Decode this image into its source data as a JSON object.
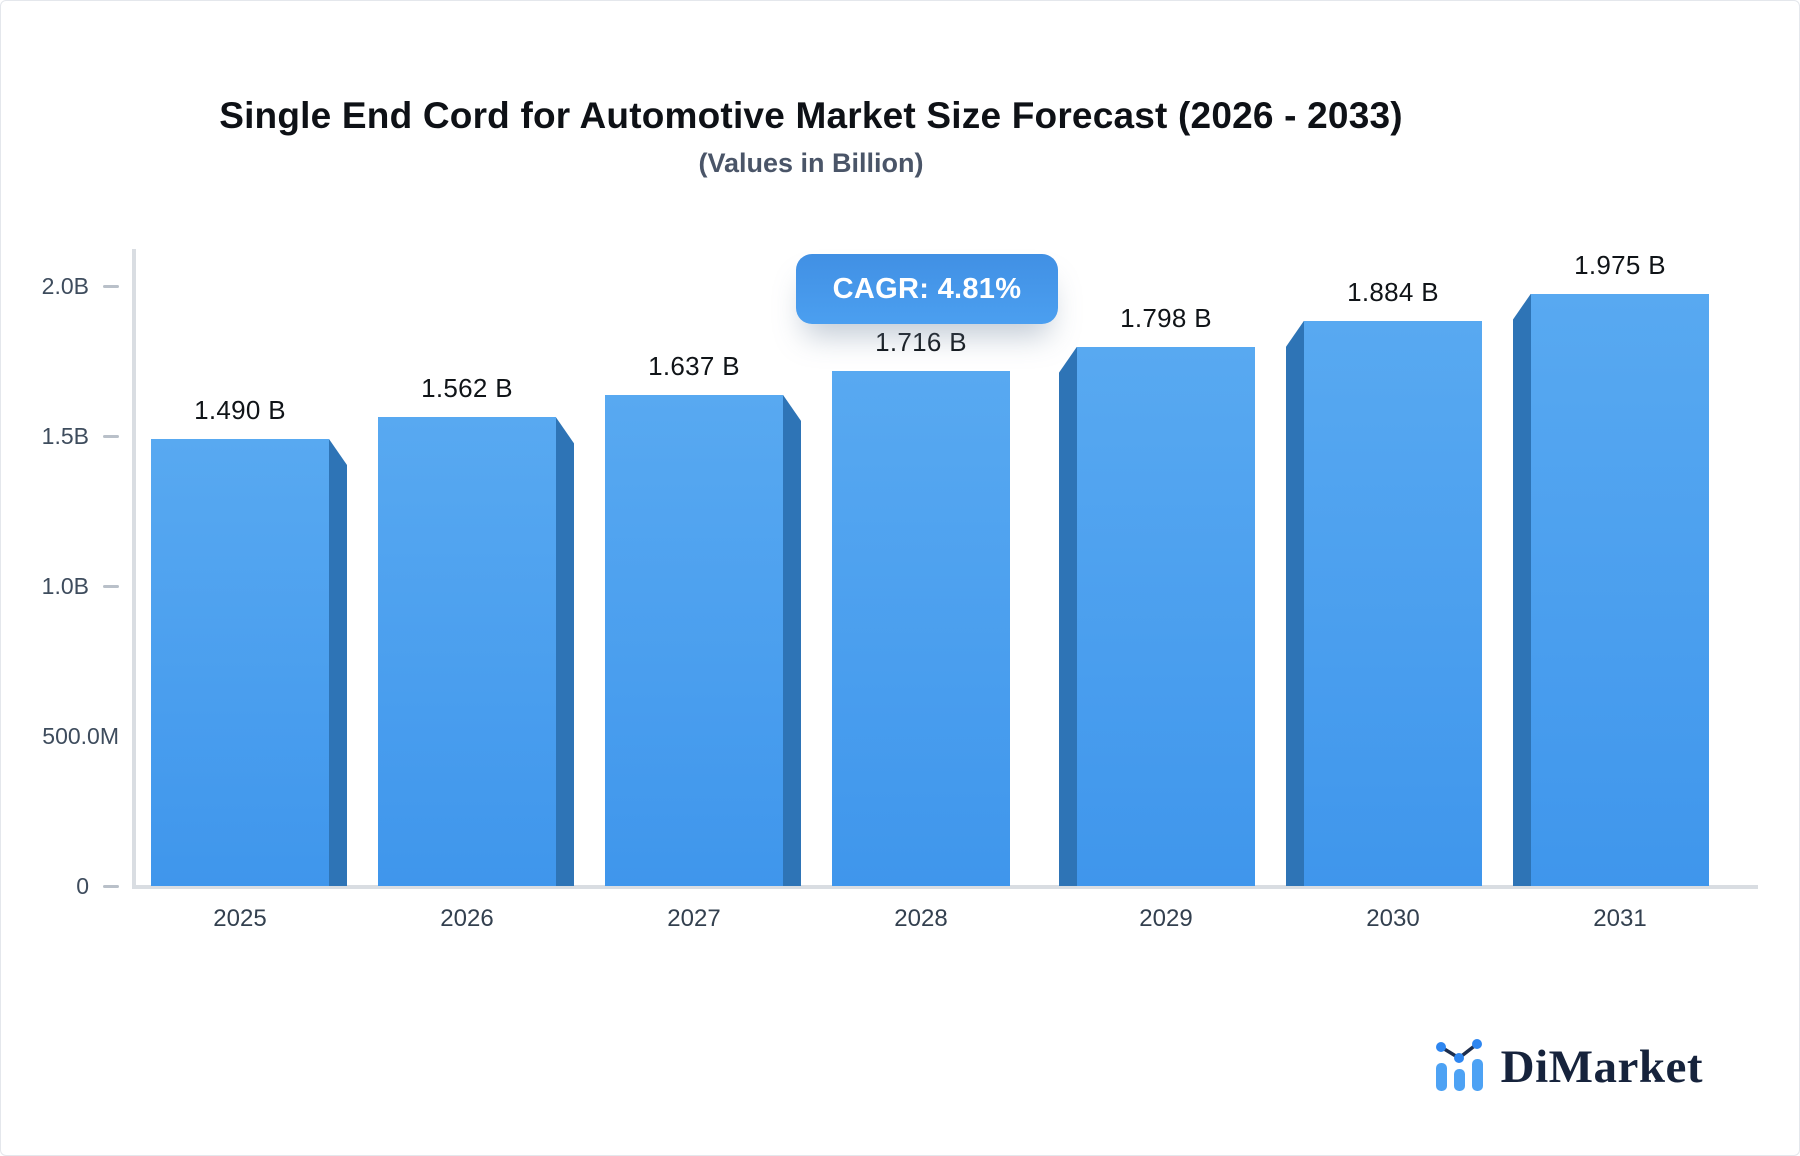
{
  "header": {
    "title": "Single End Cord for Automotive Market Size Forecast (2026 - 2033)",
    "subtitle": "(Values in Billion)",
    "cagr_label": "CAGR: 4.81%"
  },
  "chart_data": {
    "type": "bar",
    "categories": [
      "2025",
      "2026",
      "2027",
      "2028",
      "2029",
      "2030",
      "2031"
    ],
    "values": [
      1.49,
      1.562,
      1.637,
      1.716,
      1.798,
      1.884,
      1.975
    ],
    "value_labels": [
      "1.490 B",
      "1.562 B",
      "1.637 B",
      "1.716 B",
      "1.798 B",
      "1.884 B",
      "1.975 B"
    ],
    "title": "Single End Cord for Automotive Market Size Forecast (2026 - 2033)",
    "subtitle": "(Values in Billion)",
    "xlabel": "",
    "ylabel": "",
    "ylim": [
      0,
      2.0
    ],
    "y_ticks": [
      {
        "label": "2.0B",
        "value": 2.0,
        "dash": true
      },
      {
        "label": "1.5B",
        "value": 1.5,
        "dash": true
      },
      {
        "label": "1.0B",
        "value": 1.0,
        "dash": true
      },
      {
        "label": "500.0M",
        "value": 0.5,
        "dash": false
      },
      {
        "label": "0",
        "value": 0.0,
        "dash": true
      }
    ],
    "grid": false,
    "legend": false,
    "annotation": "CAGR: 4.81%",
    "bar_style": "3d-beveled"
  },
  "colors": {
    "bar_face_top": "#58a9f1",
    "bar_face_bottom": "#3f96ec",
    "bar_side": "#2e74b6",
    "badge_top": "#4190e4",
    "badge_bottom": "#4b9ff0",
    "axis": "#d9dde2",
    "logo_text": "#16233c",
    "logo_blue": "#4da2f4",
    "logo_dot": "#2e86f0",
    "logo_line": "#1d2e4e"
  },
  "logo": {
    "text": "DiMarket",
    "icon": "bar-chart-line-icon"
  }
}
